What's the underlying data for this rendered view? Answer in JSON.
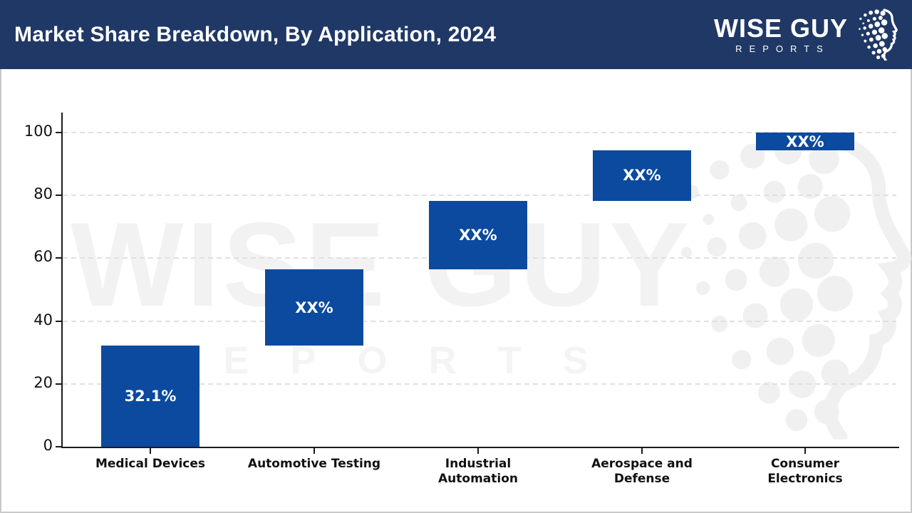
{
  "header": {
    "title": "Market Share Breakdown, By Application, 2024",
    "logo": {
      "wordmark": "WISE GUY",
      "subtext": "REPORTS"
    }
  },
  "watermark": {
    "line1": "WISE GUY",
    "line2": "REPORTS"
  },
  "colors": {
    "header_bg": "#1f3866",
    "bar": "#0b4a9e",
    "bar_label": "#ffffff",
    "grid": "#e0e0e0",
    "axis": "#1a1a1a",
    "text": "#111111",
    "panel_border": "#c9c9c9",
    "watermark": "#f2f2f2"
  },
  "chart_data": {
    "type": "bar",
    "subtype": "waterfall",
    "title": "Market Share Breakdown, By Application, 2024",
    "categories": [
      "Medical Devices",
      "Automotive Testing",
      "Industrial\nAutomation",
      "Aerospace and\nDefense",
      "Consumer\nElectronics"
    ],
    "series": [
      {
        "name": "Market share (%)",
        "segments": [
          {
            "category": "Medical Devices",
            "start": 0,
            "end": 32.1,
            "label": "32.1%"
          },
          {
            "category": "Automotive Testing",
            "start": 32.1,
            "end": 56.5,
            "label": "XX%"
          },
          {
            "category": "Industrial Automation",
            "start": 56.5,
            "end": 78.3,
            "label": "XX%"
          },
          {
            "category": "Aerospace and Defense",
            "start": 78.3,
            "end": 94.3,
            "label": "XX%"
          },
          {
            "category": "Consumer Electronics",
            "start": 94.3,
            "end": 100,
            "label": "XX%"
          }
        ]
      }
    ],
    "ylim": [
      0,
      100
    ],
    "yticks": [
      0,
      20,
      40,
      60,
      80,
      100
    ],
    "xlabel": "",
    "ylabel": "",
    "grid": {
      "horizontal": true,
      "style": "dashed"
    },
    "legend": "none"
  }
}
